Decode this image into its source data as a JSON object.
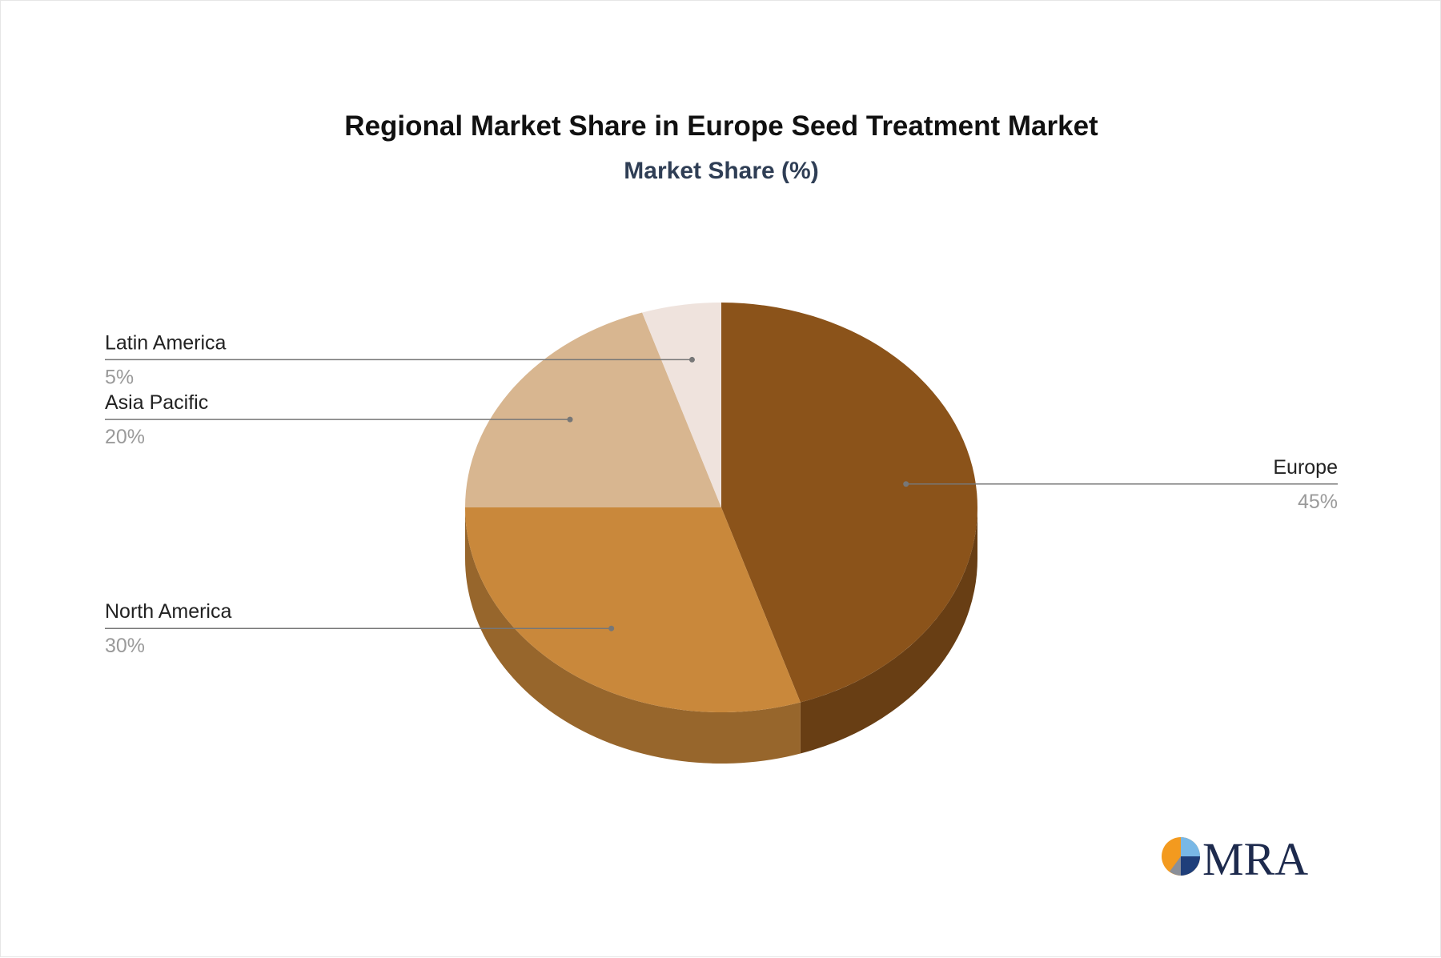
{
  "chart_data": {
    "type": "pie",
    "title": "Regional Market Share in Europe Seed Treatment Market",
    "subtitle": "Market Share (%)",
    "categories": [
      "Europe",
      "North America",
      "Asia Pacific",
      "Latin America"
    ],
    "values": [
      45,
      30,
      20,
      5
    ],
    "value_labels": [
      "45%",
      "30%",
      "20%",
      "5%"
    ],
    "colors": [
      "#8b531a",
      "#c9883b",
      "#d8b690",
      "#efe3dd"
    ],
    "style": "3d",
    "legend": "none"
  },
  "colors": {
    "title": "#111111",
    "subtitle": "#2f3e55",
    "leader_line": "#777777"
  },
  "logo": {
    "text": "MRA",
    "icon": "mra-pie-logo-icon"
  }
}
